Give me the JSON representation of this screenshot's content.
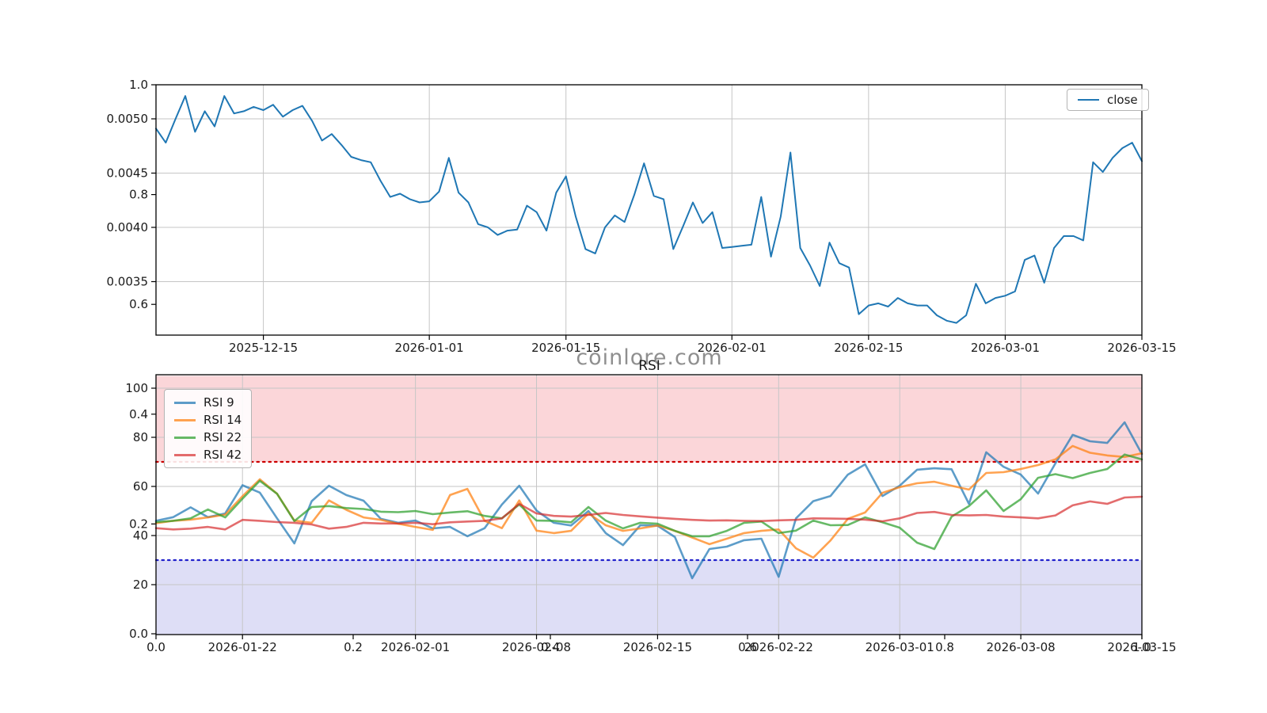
{
  "watermark": "coinlore.com",
  "figure": {
    "background": "#ffffff",
    "grid_color": "#c6c6c6",
    "spine_color": "#000000",
    "text_color": "#1a1a1a"
  },
  "overlay_axis": {
    "x_tick_labels": [
      "0.0",
      "0.2",
      "0.4",
      "0.6",
      "0.8",
      "1.0"
    ],
    "y_tick_labels": [
      "1.0",
      "0.8",
      "0.6",
      "0.4",
      "0.2",
      "0.0"
    ]
  },
  "chart_data": [
    {
      "type": "line",
      "name": "price-chart",
      "title": "",
      "legend_position": "upper right",
      "grid": true,
      "x_start_date": "2025-12-04",
      "x_freq": "daily",
      "ylim": [
        0.00302,
        0.00531
      ],
      "yticks": [
        {
          "label": "0.0050",
          "value": 0.005
        },
        {
          "label": "0.0045",
          "value": 0.0045
        },
        {
          "label": "0.0040",
          "value": 0.004
        },
        {
          "label": "0.0035",
          "value": 0.0035
        }
      ],
      "xticks": [
        {
          "label": "2025-12-15",
          "day_index": 11
        },
        {
          "label": "2026-01-01",
          "day_index": 28
        },
        {
          "label": "2026-01-15",
          "day_index": 42
        },
        {
          "label": "2026-02-01",
          "day_index": 59
        },
        {
          "label": "2026-02-15",
          "day_index": 73
        },
        {
          "label": "2026-03-01",
          "day_index": 87
        },
        {
          "label": "2026-03-15",
          "day_index": 101
        }
      ],
      "series": [
        {
          "name": "close",
          "color": "#1f77b4",
          "opacity": 1,
          "width": 2,
          "values": [
            0.00491,
            0.00478,
            0.005,
            0.00521,
            0.00488,
            0.00507,
            0.00493,
            0.00521,
            0.00505,
            0.00507,
            0.00511,
            0.00508,
            0.00513,
            0.00502,
            0.00508,
            0.00512,
            0.00498,
            0.0048,
            0.00486,
            0.00476,
            0.00465,
            0.00462,
            0.0046,
            0.00443,
            0.00428,
            0.00431,
            0.00426,
            0.00423,
            0.00424,
            0.00433,
            0.00464,
            0.00432,
            0.00423,
            0.00403,
            0.004,
            0.00393,
            0.00397,
            0.00398,
            0.0042,
            0.00414,
            0.00397,
            0.00432,
            0.00447,
            0.0041,
            0.0038,
            0.00376,
            0.004,
            0.00411,
            0.00405,
            0.0043,
            0.00459,
            0.00429,
            0.00426,
            0.0038,
            0.00401,
            0.00423,
            0.00404,
            0.00414,
            0.00381,
            0.00382,
            0.00383,
            0.00384,
            0.00428,
            0.00373,
            0.0041,
            0.00469,
            0.00381,
            0.00365,
            0.00346,
            0.00386,
            0.00367,
            0.00363,
            0.0032,
            0.00328,
            0.0033,
            0.00327,
            0.00335,
            0.0033,
            0.00328,
            0.00328,
            0.00319,
            0.00314,
            0.00312,
            0.00319,
            0.00348,
            0.0033,
            0.00335,
            0.00337,
            0.00341,
            0.0037,
            0.00374,
            0.00349,
            0.00381,
            0.00392,
            0.00392,
            0.00388,
            0.0046,
            0.00451,
            0.00464,
            0.00473,
            0.00478,
            0.00461
          ]
        }
      ]
    },
    {
      "type": "line",
      "name": "rsi-chart",
      "title": "RSI",
      "legend_position": "upper left",
      "grid": true,
      "x_start_date": "2026-01-17",
      "x_freq": "daily",
      "ylim": [
        0,
        105
      ],
      "overbought_level": 70,
      "oversold_level": 30,
      "bands": [
        {
          "name": "overbought-zone",
          "from": 70,
          "to": 105,
          "color": "#fbd6d9"
        },
        {
          "name": "oversold-zone",
          "from": 0,
          "to": 30,
          "color": "#dedef6"
        }
      ],
      "ref_lines": [
        {
          "name": "overbought-line",
          "value": 70,
          "color": "#cc0000"
        },
        {
          "name": "oversold-line",
          "value": 30,
          "color": "#2121cc"
        }
      ],
      "yticks": [
        {
          "label": "100",
          "value": 100
        },
        {
          "label": "80",
          "value": 80
        },
        {
          "label": "60",
          "value": 60
        },
        {
          "label": "40",
          "value": 40
        },
        {
          "label": "20",
          "value": 20
        }
      ],
      "xticks": [
        {
          "label": "2026-01-22",
          "day_index": 5
        },
        {
          "label": "2026-02-01",
          "day_index": 15
        },
        {
          "label": "2026-02-08",
          "day_index": 22
        },
        {
          "label": "2026-02-15",
          "day_index": 29
        },
        {
          "label": "2026-02-22",
          "day_index": 36
        },
        {
          "label": "2026-03-01",
          "day_index": 43
        },
        {
          "label": "2026-03-08",
          "day_index": 50
        },
        {
          "label": "2026-03-15",
          "day_index": 57
        }
      ],
      "series": [
        {
          "name": "RSI 9",
          "color": "#1f77b4",
          "opacity": 0.72,
          "width": 2.6,
          "values": [
            46,
            47.5,
            51.5,
            47.5,
            49,
            60.5,
            57.5,
            47,
            36.8,
            54,
            60.3,
            56.5,
            54.2,
            46.8,
            45.2,
            46.1,
            42.9,
            43.5,
            39.7,
            43,
            52.6,
            60.3,
            50.2,
            45.2,
            44.1,
            50,
            41,
            36.1,
            44.2,
            44,
            39.4,
            22.6,
            34.5,
            35.5,
            38.1,
            38.7,
            23.2,
            47,
            54,
            56.1,
            64.8,
            69,
            56.1,
            60.3,
            66.8,
            67.4,
            67,
            52.9,
            73.9,
            68,
            64.8,
            57.1,
            69.4,
            81,
            78.4,
            77.7,
            86.1,
            73.2
          ]
        },
        {
          "name": "RSI 14",
          "color": "#ff7f0e",
          "opacity": 0.72,
          "width": 2.6,
          "values": [
            45,
            46,
            46.5,
            47.4,
            48.5,
            56,
            62.9,
            57,
            46.1,
            45.2,
            54.3,
            50.5,
            47.4,
            46.4,
            44.8,
            43.5,
            42.3,
            56.5,
            59,
            46,
            43,
            54.3,
            42,
            41,
            41.9,
            49,
            44.2,
            41.9,
            42.9,
            44.1,
            41.9,
            39.2,
            36.5,
            38.7,
            41,
            41.9,
            42.5,
            34.8,
            31,
            38,
            46.8,
            49.4,
            57.4,
            59.7,
            61.3,
            61.9,
            60.3,
            58.7,
            65.5,
            65.8,
            67.1,
            68.7,
            71,
            76.5,
            73.7,
            72.6,
            72,
            73.5
          ]
        },
        {
          "name": "RSI 22",
          "color": "#2ca02c",
          "opacity": 0.72,
          "width": 2.6,
          "values": [
            45.5,
            46,
            47,
            50.6,
            47.4,
            55,
            62.3,
            57,
            45.9,
            51.6,
            52,
            51.2,
            50.8,
            49.7,
            49.5,
            50,
            48.7,
            49.4,
            49.9,
            48,
            47,
            52.6,
            46.1,
            46,
            45.4,
            51.6,
            46.1,
            42.9,
            45.2,
            44.8,
            41.9,
            39.7,
            39.7,
            41.9,
            45.2,
            45.7,
            41,
            42,
            46.1,
            44.2,
            44.3,
            47.4,
            45.4,
            43.2,
            37.1,
            34.5,
            47.7,
            52,
            58.4,
            50,
            54.8,
            63.5,
            65,
            63.4,
            65.5,
            67.1,
            73,
            71
          ]
        },
        {
          "name": "RSI 42",
          "color": "#d62728",
          "opacity": 0.68,
          "width": 2.6,
          "values": [
            43,
            42.5,
            42.8,
            43.5,
            42.5,
            46.4,
            46,
            45.5,
            45.2,
            44.5,
            42.8,
            43.5,
            45.2,
            44.9,
            44.9,
            45.2,
            44.6,
            45.4,
            45.7,
            46,
            47,
            52.9,
            49,
            48,
            47.7,
            48.4,
            49.2,
            48.4,
            47.8,
            47.3,
            46.8,
            46.4,
            46.1,
            46.2,
            46,
            45.9,
            46.2,
            46.4,
            47,
            46.9,
            46.8,
            46.5,
            45.8,
            47,
            49.2,
            49.6,
            48.4,
            48.2,
            48.4,
            47.7,
            47.4,
            47,
            48.2,
            52.3,
            53.9,
            52.9,
            55.5,
            55.8
          ]
        }
      ]
    }
  ]
}
